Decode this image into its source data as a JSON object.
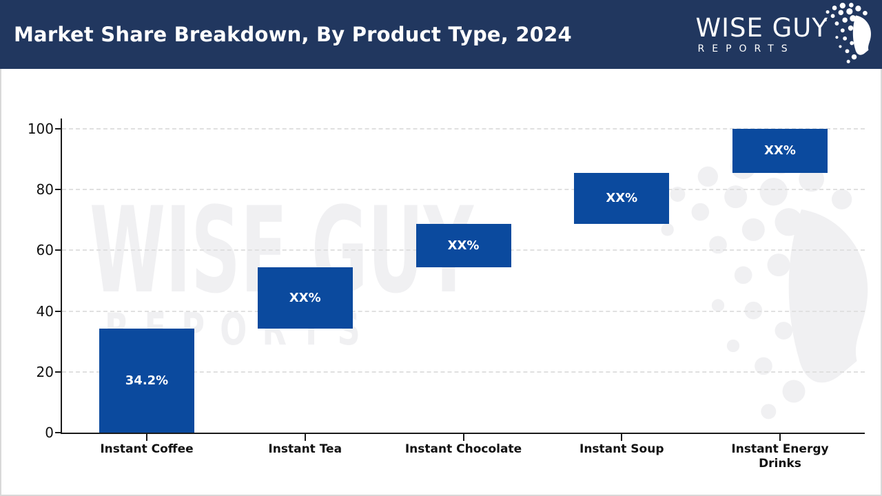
{
  "header": {
    "title": "Market Share Breakdown, By Product Type, 2024",
    "bg_color": "#21375f",
    "title_color": "#ffffff",
    "logo": {
      "line1": "WISE GUY",
      "line2": "REPORTS"
    }
  },
  "watermark": {
    "line1": "WISE GUY",
    "line2": "REPORTS"
  },
  "chart_data": {
    "type": "bar",
    "subtype": "waterfall",
    "title": "Market Share Breakdown, By Product Type, 2024",
    "xlabel": "",
    "ylabel": "",
    "ylim": [
      0,
      100
    ],
    "yticks": [
      0,
      20,
      40,
      60,
      80,
      100
    ],
    "grid": "horizontal-dashed",
    "legend": "none",
    "bar_color": "#0b4a9e",
    "label_color": "#ffffff",
    "categories": [
      "Instant Coffee",
      "Instant Tea",
      "Instant Chocolate",
      "Instant Soup",
      "Instant Energy Drinks"
    ],
    "segments": [
      {
        "category": "Instant Coffee",
        "start": 0,
        "end": 34.2,
        "label": "34.2%"
      },
      {
        "category": "Instant Tea",
        "start": 34.2,
        "end": 54.5,
        "label": "XX%"
      },
      {
        "category": "Instant Chocolate",
        "start": 54.5,
        "end": 68.8,
        "label": "XX%"
      },
      {
        "category": "Instant Soup",
        "start": 68.8,
        "end": 85.6,
        "label": "XX%"
      },
      {
        "category": "Instant Energy Drinks",
        "start": 85.6,
        "end": 100,
        "label": "XX%"
      }
    ]
  }
}
